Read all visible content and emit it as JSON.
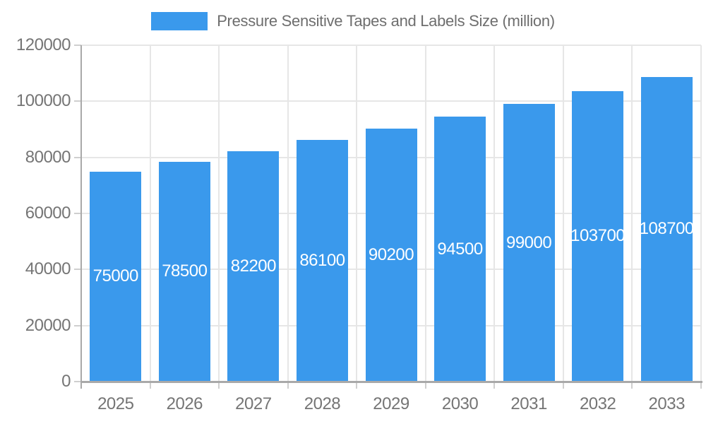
{
  "chart_data": {
    "type": "bar",
    "title": "Pressure Sensitive Tapes and Labels Size (million)",
    "categories": [
      "2025",
      "2026",
      "2027",
      "2028",
      "2029",
      "2030",
      "2031",
      "2032",
      "2033"
    ],
    "values": [
      75000,
      78500,
      82200,
      86100,
      90200,
      94500,
      99000,
      103700,
      108700
    ],
    "value_labels": [
      "75000",
      "78500",
      "82200",
      "86100",
      "90200",
      "94500",
      "99000",
      "103700",
      "108700"
    ],
    "xlabel": "",
    "ylabel": "",
    "ylim": [
      0,
      120000
    ],
    "ytick_step": 20000,
    "ytick_labels": [
      "0",
      "20000",
      "40000",
      "60000",
      "80000",
      "100000",
      "120000"
    ],
    "grid": true,
    "legend_position": "top",
    "colors": {
      "bar": "#3a99ec",
      "bar_value_text": "#ffffff",
      "axis_text": "#757575",
      "gridline": "#e6e6e6",
      "axis_line": "#a9a9a9",
      "tick_mark": "#cfcfcf",
      "legend_text": "#6e6e6e",
      "background": "#ffffff"
    }
  }
}
